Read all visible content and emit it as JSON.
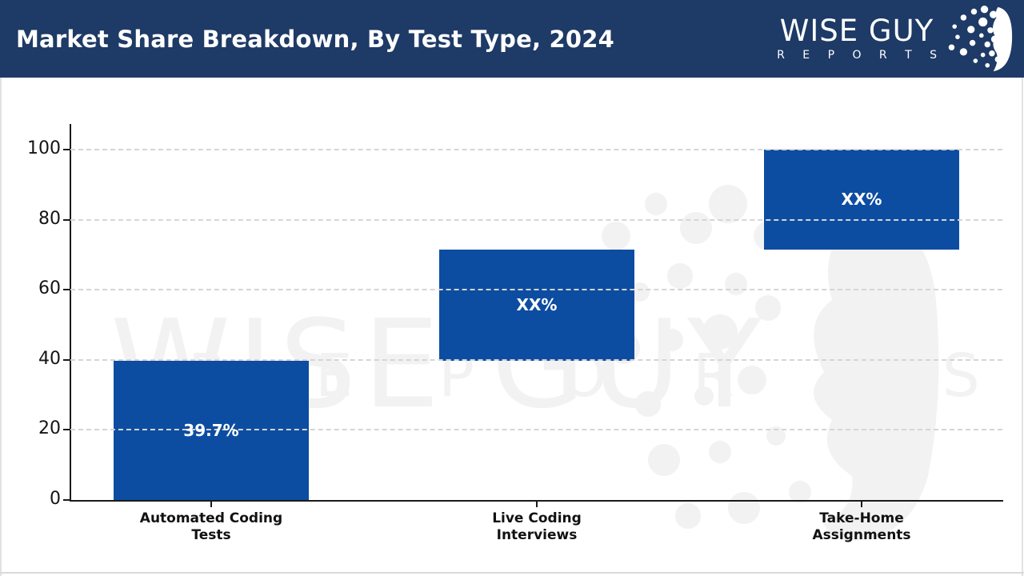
{
  "header": {
    "title": "Market Share Breakdown, By Test Type, 2024",
    "logo_line1": "WISE GUY",
    "logo_line2": "R E P O R T S"
  },
  "watermark": {
    "line1": "WISE GUY",
    "line2": "R E P O R T S"
  },
  "chart_data": {
    "type": "bar",
    "subtype": "waterfall",
    "title": "Market Share Breakdown, By Test Type, 2024",
    "categories": [
      "Automated Coding\nTests",
      "Live Coding\nInterviews",
      "Take-Home\nAssignments"
    ],
    "segments": [
      {
        "category": "Automated Coding\nTests",
        "start": 0,
        "end": 39.7,
        "value_label": "39.7%"
      },
      {
        "category": "Live Coding\nInterviews",
        "start": 39.7,
        "end": 71.5,
        "value_label": "XX%"
      },
      {
        "category": "Take-Home\nAssignments",
        "start": 71.5,
        "end": 100,
        "value_label": "XX%"
      }
    ],
    "ylim": [
      0,
      100
    ],
    "yticks": [
      0,
      20,
      40,
      60,
      80,
      100
    ],
    "grid": "horizontal-dashed",
    "legend": "none",
    "bar_color": "#0d4da1",
    "colors": {
      "header_bg": "#1e3a66",
      "grid": "#d5d5d5",
      "axis": "#1a1a1a",
      "watermark": "#f2f2f2",
      "value_label_text": "#ffffff"
    }
  }
}
